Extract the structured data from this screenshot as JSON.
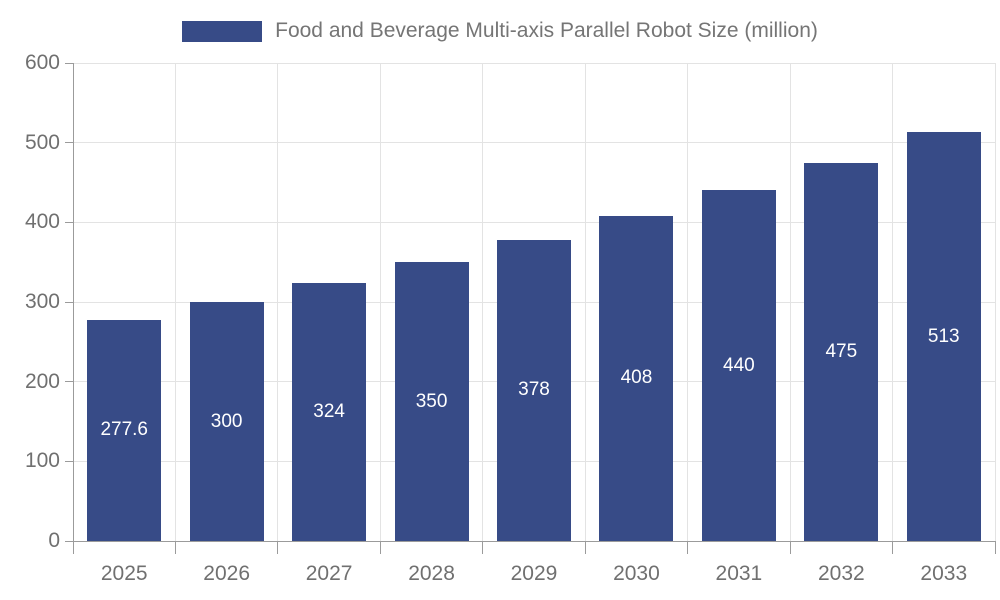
{
  "chart_data": {
    "type": "bar",
    "title": "Food and Beverage Multi-axis Parallel Robot Size (million)",
    "categories": [
      "2025",
      "2026",
      "2027",
      "2028",
      "2029",
      "2030",
      "2031",
      "2032",
      "2033"
    ],
    "values": [
      277.6,
      300,
      324,
      350,
      378,
      408,
      440,
      475,
      513
    ],
    "value_labels": [
      "277.6",
      "300",
      "324",
      "350",
      "378",
      "408",
      "440",
      "475",
      "513"
    ],
    "xlabel": "",
    "ylabel": "",
    "ylim": [
      0,
      600
    ],
    "y_ticks": [
      0,
      100,
      200,
      300,
      400,
      500,
      600
    ],
    "grid": true,
    "legend_position": "top-center",
    "bar_label_position": "inside-middle",
    "colors": {
      "bar": "#374b87",
      "bar_label_text": "#ffffff",
      "axis_text": "#707070",
      "title_text": "#757575",
      "grid_line": "#e3e3e3",
      "axis_line": "#9b9b9b",
      "background": "#ffffff"
    }
  }
}
